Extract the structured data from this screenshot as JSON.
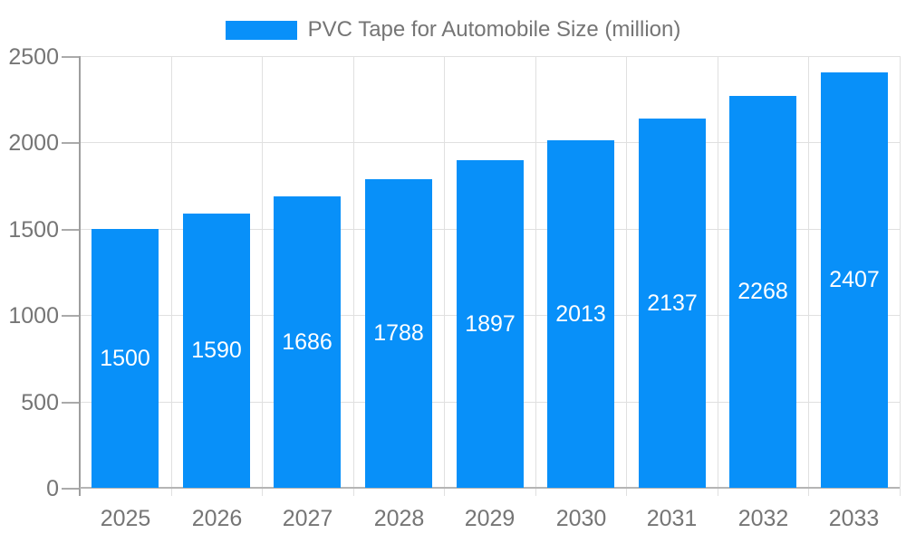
{
  "chart_data": {
    "type": "bar",
    "title": "PVC Tape for Automobile Size (million)",
    "series": [
      {
        "name": "PVC Tape for Automobile Size (million)",
        "values": [
          1500,
          1590,
          1686,
          1788,
          1897,
          2013,
          2137,
          2268,
          2407
        ]
      }
    ],
    "categories": [
      "2025",
      "2026",
      "2027",
      "2028",
      "2029",
      "2030",
      "2031",
      "2032",
      "2033"
    ],
    "xlabel": "",
    "ylabel": "",
    "ylim": [
      0,
      2500
    ],
    "y_ticks": [
      0,
      500,
      1000,
      1500,
      2000,
      2500
    ],
    "grid": true,
    "legend_position": "top-center",
    "bar_value_labels": "inside-center"
  },
  "colors": {
    "bar": "#0890f9",
    "grid": "#e0e0e0",
    "x_axis_line": "#b5b5b5",
    "y_axis_line": "#9e9e9e",
    "y_tick": "#aaaaaa",
    "axis_text": "#757575",
    "bar_label_text": "#ffffff",
    "background": "#ffffff"
  }
}
